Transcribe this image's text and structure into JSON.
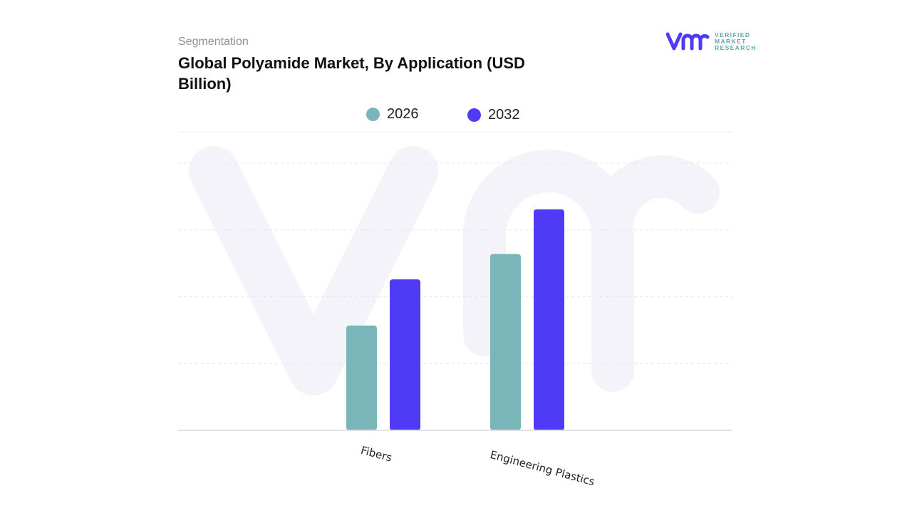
{
  "header": {
    "segment_label": "Segmentation",
    "title": "Global Polyamide Market, By Application (USD Billion)"
  },
  "logo": {
    "mark": "vmr",
    "lines": [
      "VERIFIED",
      "MARKET",
      "RESEARCH"
    ]
  },
  "colors": {
    "series_2026": "#7ab5b9",
    "series_2032": "#4f3af5",
    "grid": "#e6e6ea",
    "watermark": "#f4f3fa"
  },
  "chart_data": {
    "type": "bar",
    "title": "Global Polyamide Market, By Application (USD Billion)",
    "categories": [
      "Fibers",
      "Engineering Plastics"
    ],
    "series": [
      {
        "name": "2026",
        "values": [
          1.57,
          2.64
        ]
      },
      {
        "name": "2032",
        "values": [
          2.26,
          3.31
        ]
      }
    ],
    "xlabel": "",
    "ylabel": "",
    "ylim": [
      0,
      4.5
    ],
    "gridlines": [
      1,
      2,
      3,
      4
    ],
    "grid": true,
    "legend_position": "top-center"
  }
}
